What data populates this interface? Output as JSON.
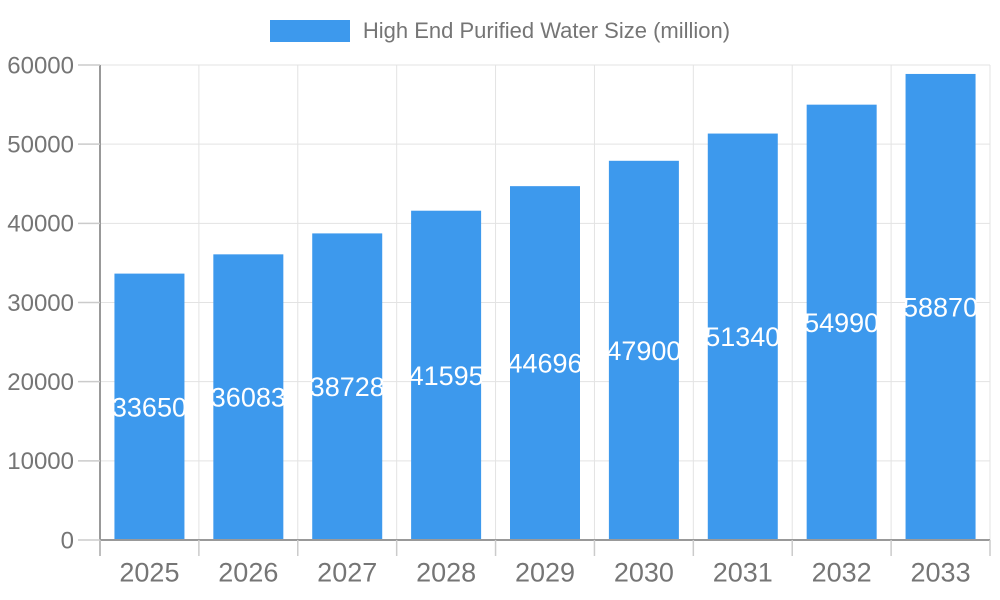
{
  "chart_data": {
    "type": "bar",
    "title": "High End Purified Water Size (million)",
    "categories": [
      "2025",
      "2026",
      "2027",
      "2028",
      "2029",
      "2030",
      "2031",
      "2032",
      "2033"
    ],
    "series": [
      {
        "name": "High End Purified Water Size (million)",
        "values": [
          33650,
          36083,
          38728,
          41595,
          44696,
          47900,
          51340,
          54990,
          58870
        ]
      }
    ],
    "value_labels": [
      "33650",
      "36083",
      "38728",
      "41595",
      "44696",
      "47900",
      "51340",
      "54990",
      "58870"
    ],
    "xlabel": "",
    "ylabel": "",
    "ylim": [
      0,
      60000
    ],
    "ytick_interval": 10000,
    "ytick_labels": [
      "0",
      "10000",
      "20000",
      "30000",
      "40000",
      "50000",
      "60000"
    ],
    "grid": "on",
    "legend_position": "top-center",
    "value_label_position": "inside-center",
    "colors": {
      "bar": "#3D99ED",
      "value_label": "#FFFFFF",
      "axis_label": "#757575",
      "legend_label": "#757575",
      "axis_line": "#999999",
      "tick_line": "#CBCBCB",
      "gridline": "#E3E3E3",
      "background": "#FFFFFF"
    }
  }
}
